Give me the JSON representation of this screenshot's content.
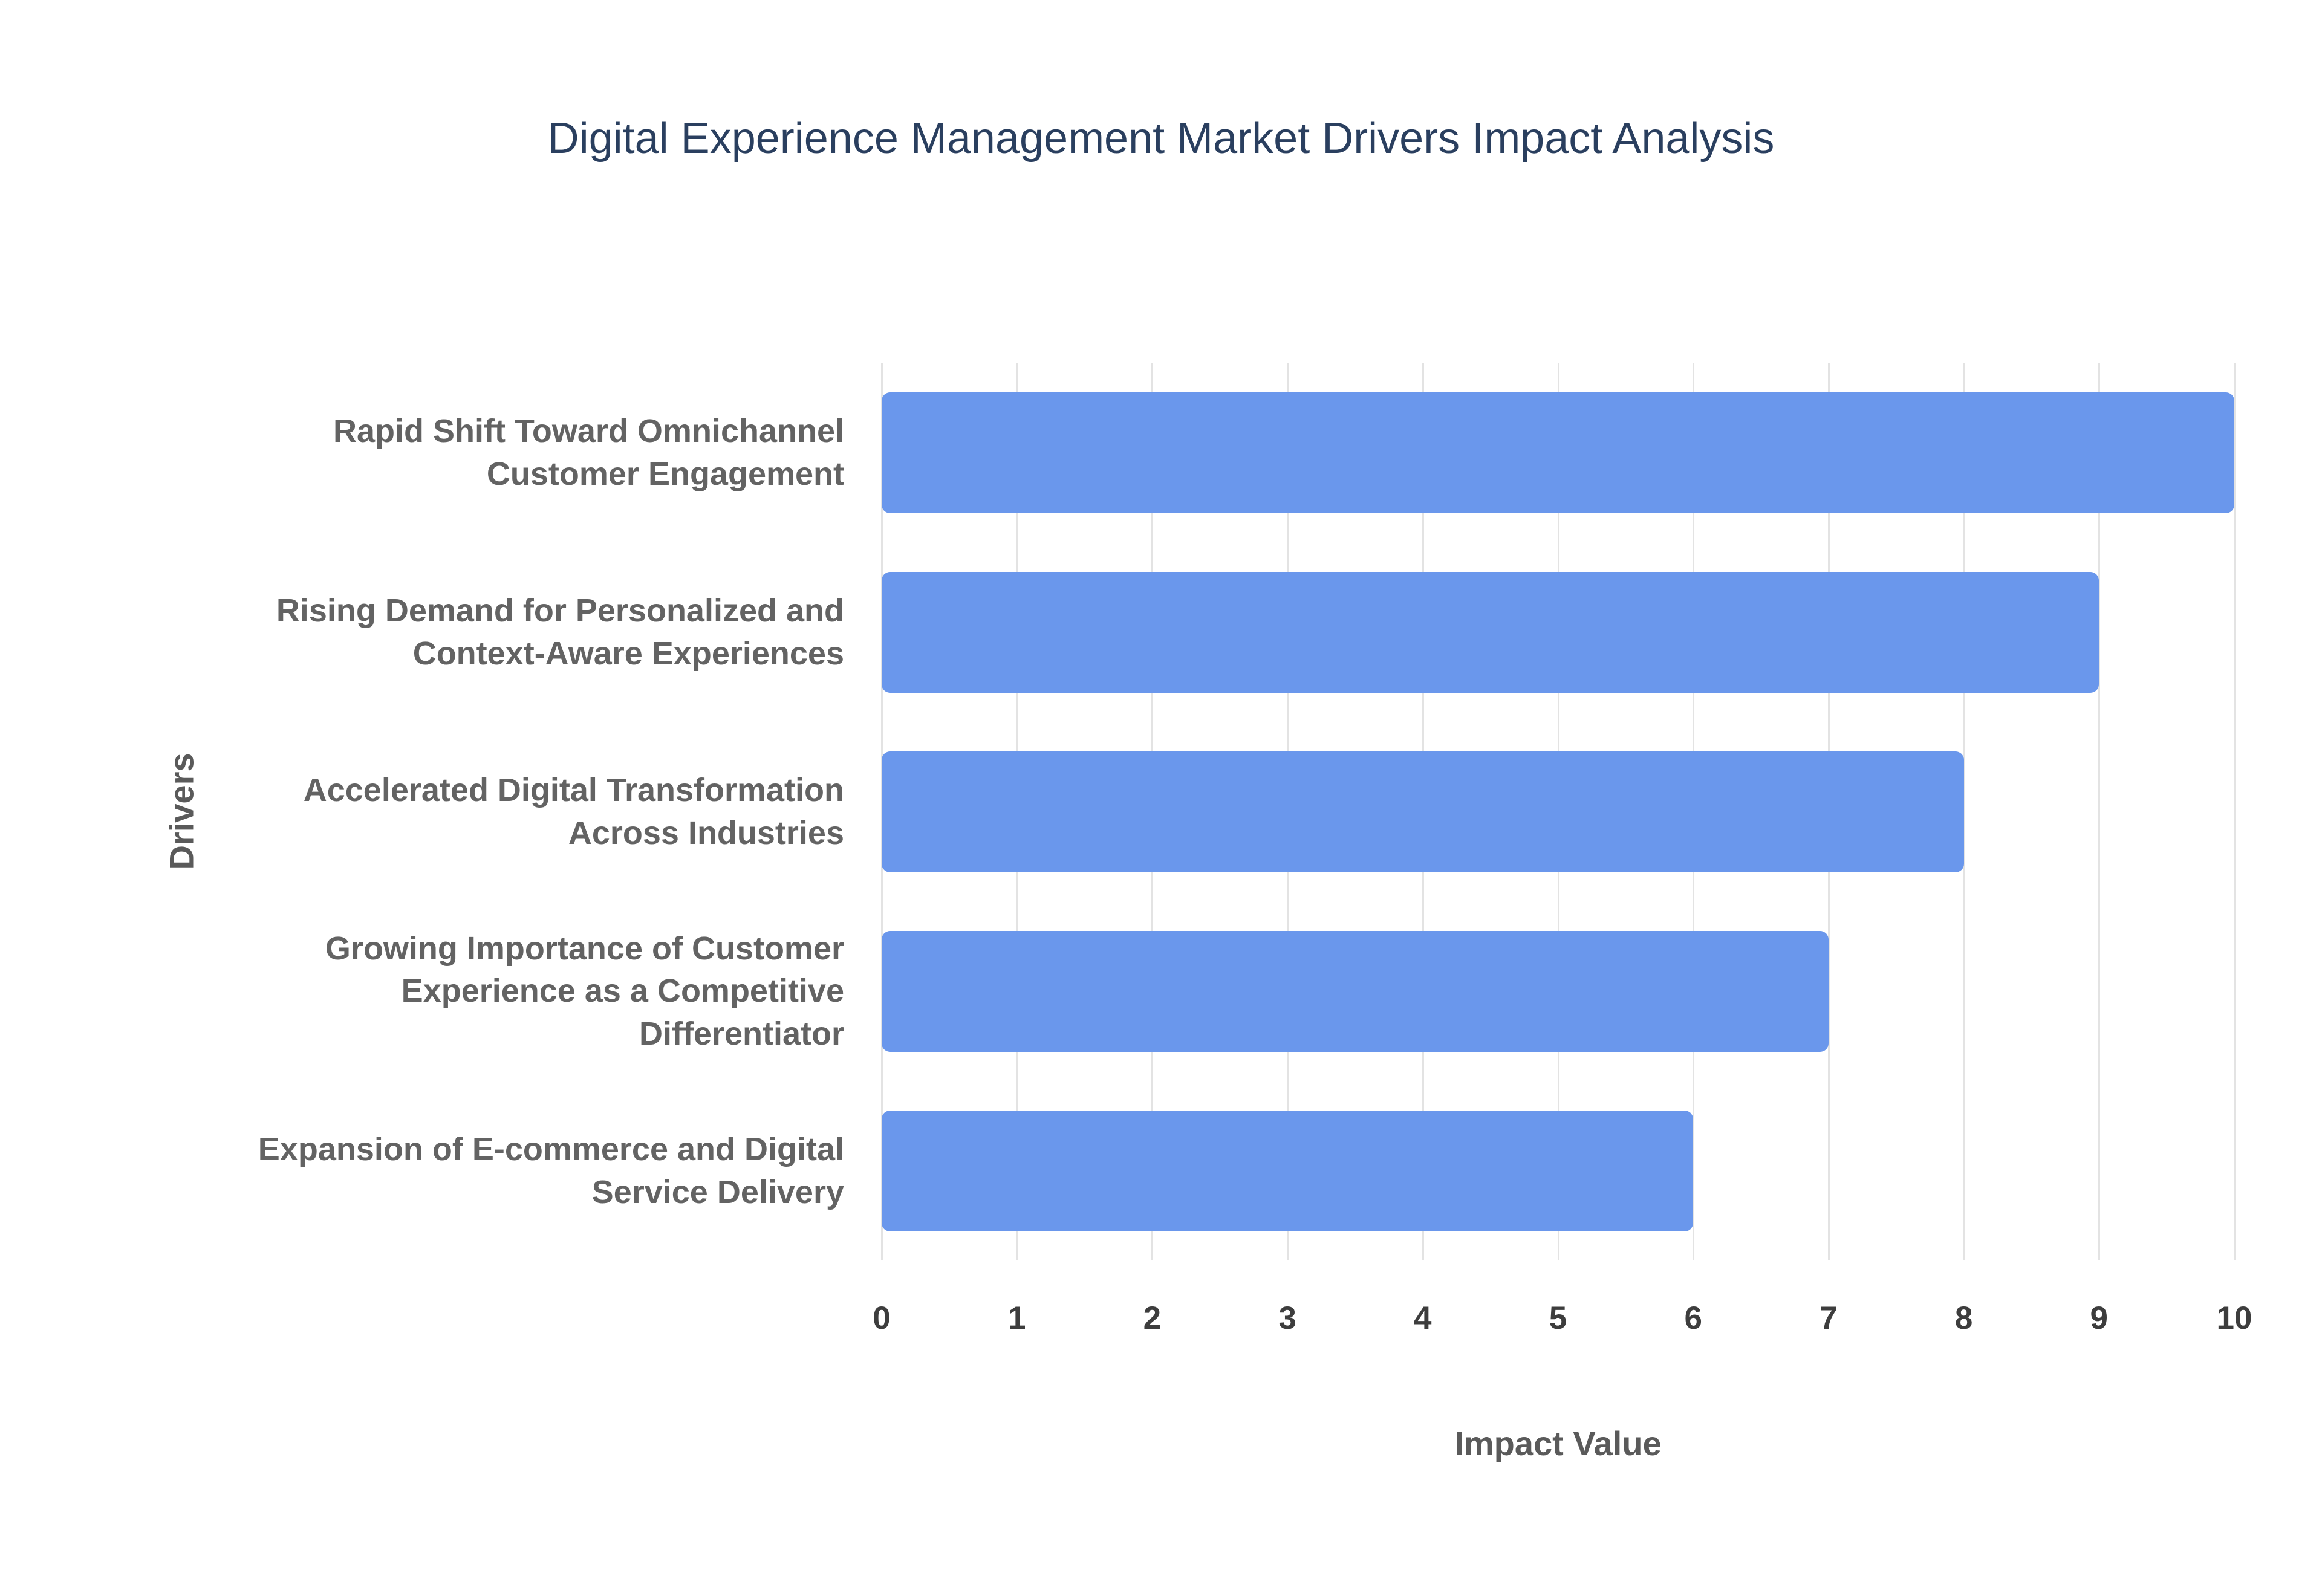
{
  "chart_data": {
    "type": "bar",
    "orientation": "horizontal",
    "title": "Digital Experience Management Market Drivers Impact Analysis",
    "xlabel": "Impact Value",
    "ylabel": "Drivers",
    "categories": [
      "Rapid Shift Toward Omnichannel Customer Engagement",
      "Rising Demand for Personalized and Context-Aware Experiences",
      "Accelerated Digital Transformation Across Industries",
      "Growing Importance of Customer Experience as a Competitive Differentiator",
      "Expansion of E-commerce and Digital Service Delivery"
    ],
    "values": [
      10,
      9,
      8,
      7,
      6
    ],
    "xlim": [
      0,
      10
    ],
    "xticks": [
      0,
      1,
      2,
      3,
      4,
      5,
      6,
      7,
      8,
      9,
      10
    ],
    "grid": true,
    "legend": false,
    "bar_color": "#6a97ec",
    "title_color": "#2a3f5f",
    "gridline_color": "#e3e3e3",
    "background_color": "#ffffff"
  }
}
